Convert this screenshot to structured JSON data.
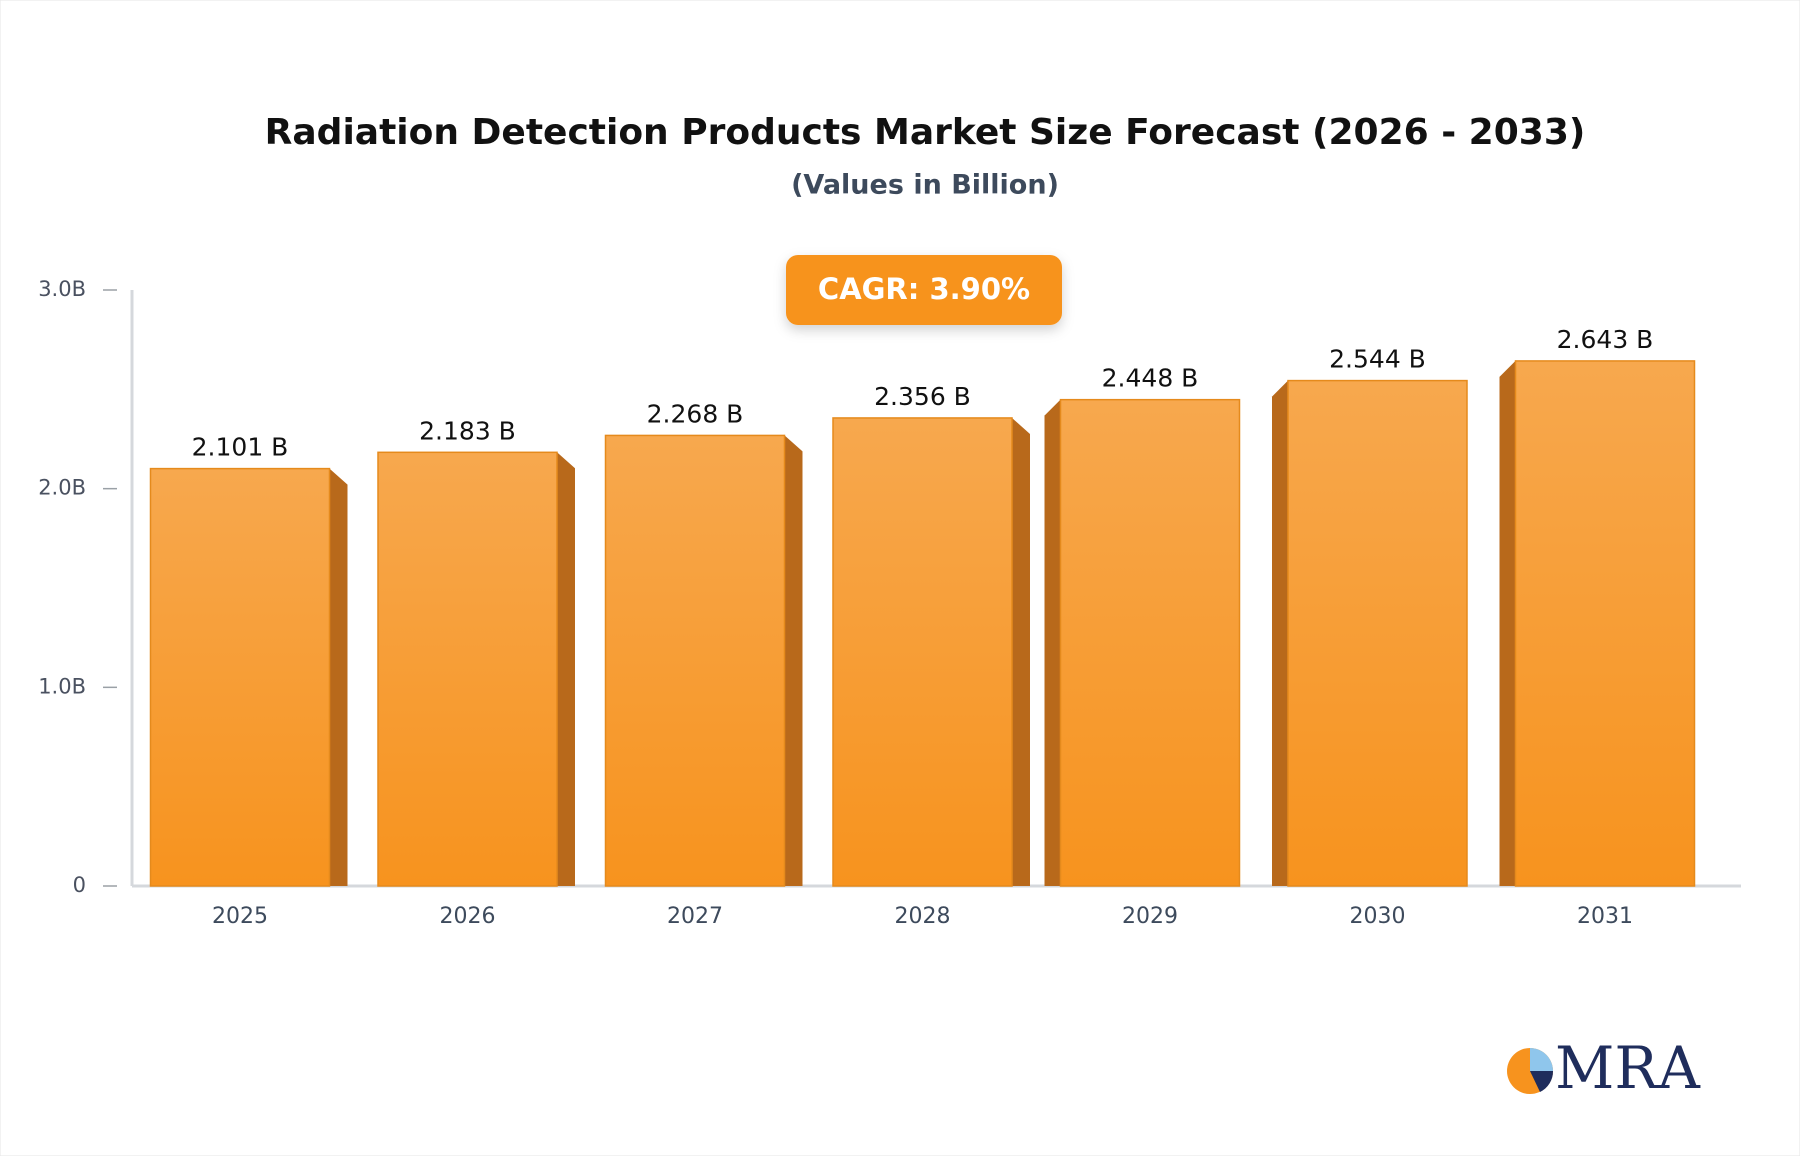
{
  "chart_data": {
    "type": "bar",
    "title": "Radiation Detection Products Market Size Forecast (2026 - 2033)",
    "subtitle": "(Values in Billion)",
    "annotation": "CAGR: 3.90%",
    "logo": "MRA",
    "categories": [
      "2025",
      "2026",
      "2027",
      "2028",
      "2029",
      "2030",
      "2031"
    ],
    "values": [
      2.101,
      2.183,
      2.268,
      2.356,
      2.448,
      2.544,
      2.643
    ],
    "value_labels": [
      "2.101 B",
      "2.183 B",
      "2.268 B",
      "2.356 B",
      "2.448 B",
      "2.544 B",
      "2.643 B"
    ],
    "color": "#f7931e",
    "ylim": [
      0,
      3
    ],
    "yticks": [
      0,
      {
        "value": 1,
        "label": "1.0B"
      },
      {
        "value": 2,
        "label": "2.0B"
      },
      {
        "value": 3,
        "label": "3.0B"
      }
    ],
    "grid": false
  }
}
